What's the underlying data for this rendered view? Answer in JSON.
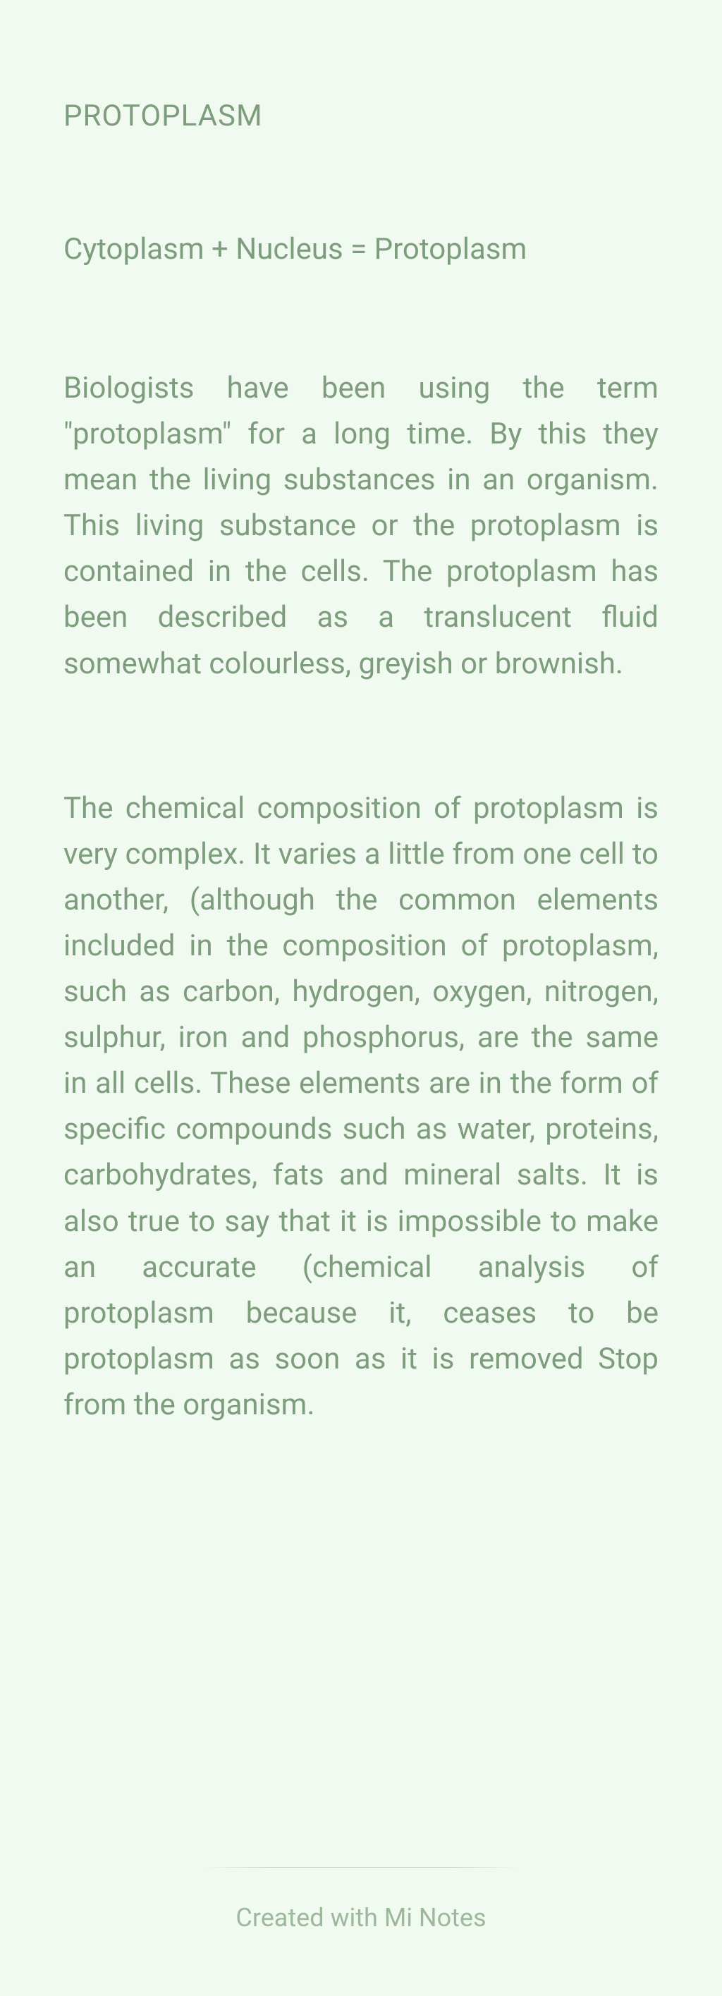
{
  "note": {
    "title": "PROTOPLASM",
    "equation": "Cytoplasm + Nucleus = Protoplasm",
    "paragraph1": "Biologists have been using the term \"protoplasm\" for a long time. By this they mean the living substances in an organism. This living substance or the protoplasm is contained in the cells. The protoplasm has been described as a translucent  fluid somewhat colourless, greyish or brownish.",
    "paragraph2": "The chemical composition of protoplasm is very complex. It varies a little from one cell to another, (although the common elements included in the composition of protoplasm, such as carbon, hydrogen, oxygen, nitrogen, sulphur, iron and phosphorus, are the same in all cells. These elements are in the form of specific compounds such as water, proteins, carbohydrates, fats and mineral salts. It is also true to say that it is impossible to make an accurate (chemical analysis of protoplasm because it, ceases to be protoplasm as soon as it is removed Stop from the organism."
  },
  "footer": {
    "created_with": "Created with Mi Notes"
  },
  "styling": {
    "background_color": "#f0faf0",
    "text_color": "#7d9d7d",
    "footer_text_color": "#9db89d",
    "divider_color": "#c0d4c0",
    "title_fontsize": 42,
    "body_fontsize": 42,
    "footer_fontsize": 36,
    "line_height": 1.55,
    "text_align": "justify"
  }
}
